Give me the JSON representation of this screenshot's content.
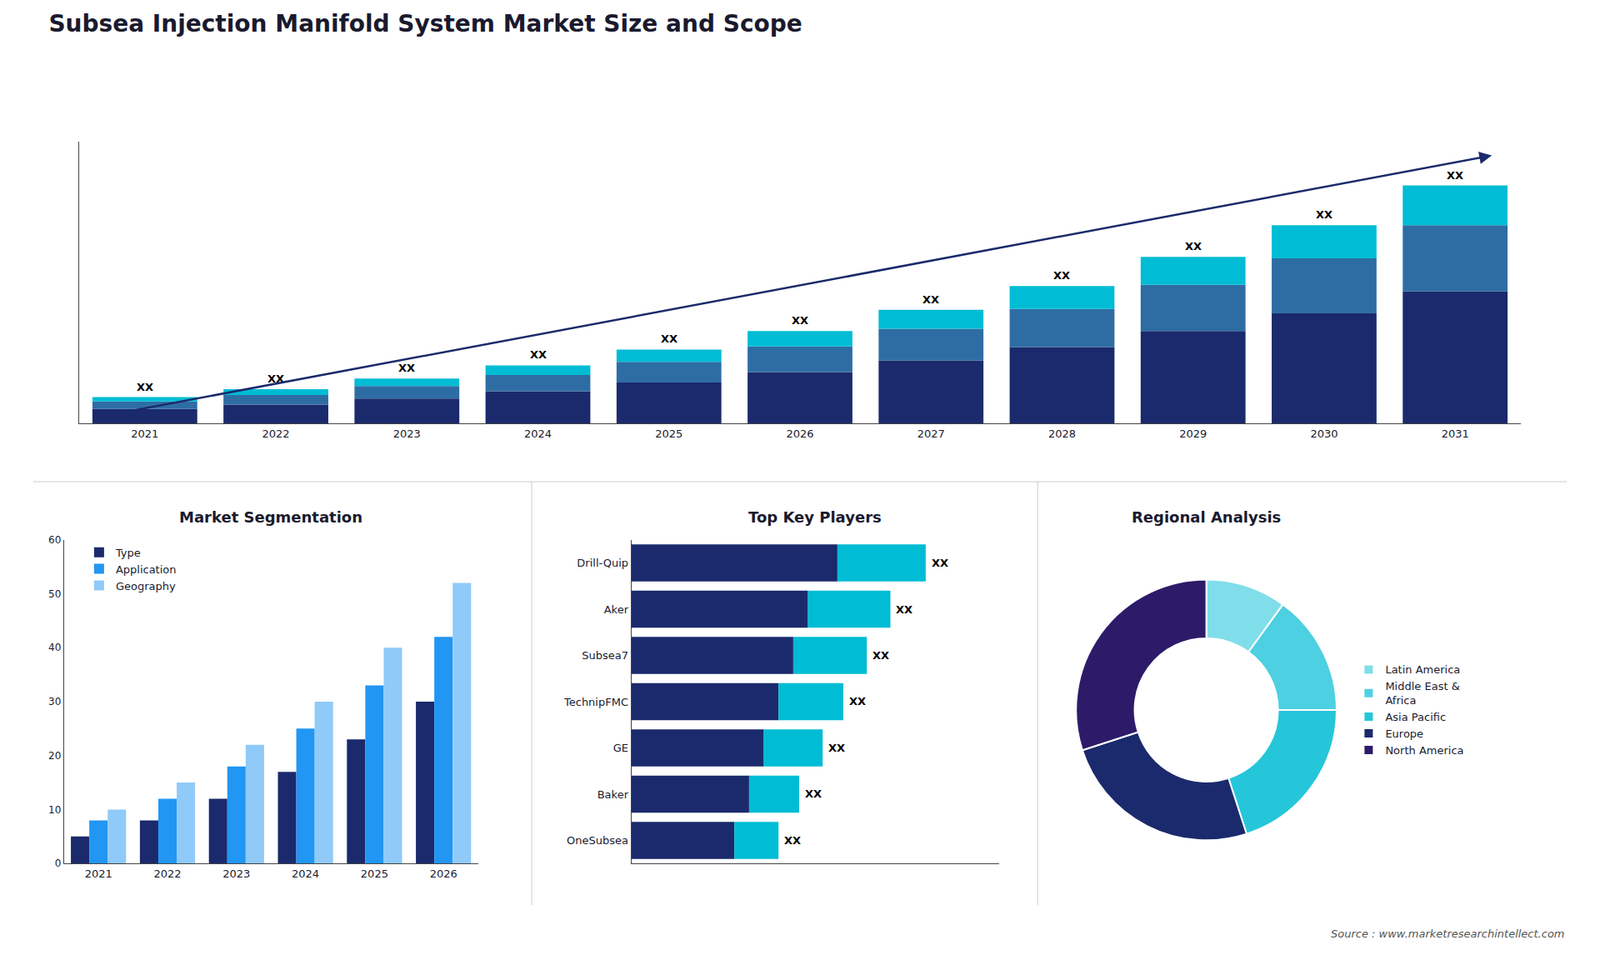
{
  "chart_data": [
    {
      "type": "bar",
      "title": "Subsea Injection Manifold System Market Size and Scope",
      "stacked": true,
      "categories": [
        "2021",
        "2022",
        "2023",
        "2024",
        "2025",
        "2026",
        "2027",
        "2028",
        "2029",
        "2030",
        "2031"
      ],
      "series": [
        {
          "color": "#1a2a6c",
          "values": [
            1,
            1.3,
            1.7,
            2.2,
            2.8,
            3.5,
            4.3,
            5.2,
            6.3,
            7.5,
            9.0
          ]
        },
        {
          "color": "#2e6da4",
          "values": [
            0.5,
            0.65,
            0.85,
            1.1,
            1.4,
            1.75,
            2.15,
            2.6,
            3.15,
            3.75,
            4.5
          ]
        },
        {
          "color": "#00bcd4",
          "values": [
            0.3,
            0.39,
            0.51,
            0.66,
            0.84,
            1.05,
            1.29,
            1.56,
            1.89,
            2.25,
            2.7
          ]
        }
      ],
      "ylim": [
        0,
        19.2
      ],
      "tick_labels": "x",
      "grid": false,
      "annotations": [
        {
          "category": "2021",
          "text": "XX"
        },
        {
          "category": "2022",
          "text": "XX"
        },
        {
          "category": "2023",
          "text": "XX"
        },
        {
          "category": "2024",
          "text": "XX"
        },
        {
          "category": "2025",
          "text": "XX"
        },
        {
          "category": "2026",
          "text": "XX"
        },
        {
          "category": "2027",
          "text": "XX"
        },
        {
          "category": "2028",
          "text": "XX"
        },
        {
          "category": "2029",
          "text": "XX"
        },
        {
          "category": "2030",
          "text": "XX"
        },
        {
          "category": "2031",
          "text": "XX"
        },
        {
          "text": "Source : www.marketresearchintellect.com"
        }
      ]
    },
    {
      "type": "bar",
      "title": "Market Segmentation",
      "categories": [
        "2021",
        "2022",
        "2023",
        "2024",
        "2025",
        "2026"
      ],
      "series": [
        {
          "name": "Type",
          "color": "#1a2a6c",
          "values": [
            5,
            8,
            12,
            17,
            23,
            30
          ]
        },
        {
          "name": "Application",
          "color": "#2196f3",
          "values": [
            8,
            12,
            18,
            25,
            33,
            42
          ]
        },
        {
          "name": "Geography",
          "color": "#90caf9",
          "values": [
            10,
            15,
            22,
            30,
            40,
            52
          ]
        }
      ],
      "ylim": [
        0,
        60
      ],
      "yticks": [
        0,
        10,
        20,
        30,
        40,
        50,
        60
      ],
      "legend": "upper left",
      "grid": false
    },
    {
      "type": "bar",
      "title": "Top Key Players",
      "orientation": "horizontal",
      "stacked": true,
      "categories": [
        "Drill-Quip",
        "Aker",
        "Subsea7",
        "TechnipFMC",
        "GE",
        "Baker",
        "OneSubsea"
      ],
      "series": [
        {
          "color": "#1a2a6c",
          "values": [
            7,
            6,
            5.5,
            5,
            4.5,
            4,
            3.5
          ]
        },
        {
          "color": "#00bcd4",
          "values": [
            3,
            2.8,
            2.5,
            2.2,
            2.0,
            1.7,
            1.5
          ]
        }
      ],
      "xlim": [
        0,
        12.5
      ],
      "tick_labels": "y",
      "grid": false,
      "annotations": [
        {
          "category": "Drill-Quip",
          "text": "XX"
        },
        {
          "category": "Aker",
          "text": "XX"
        },
        {
          "category": "Subsea7",
          "text": "XX"
        },
        {
          "category": "TechnipFMC",
          "text": "XX"
        },
        {
          "category": "GE",
          "text": "XX"
        },
        {
          "category": "Baker",
          "text": "XX"
        },
        {
          "category": "OneSubsea",
          "text": "XX"
        }
      ]
    },
    {
      "type": "pie",
      "title": "Regional Analysis",
      "categories": [
        "Latin America",
        "Middle East &\nAfrica",
        "Asia Pacific",
        "Europe",
        "North America"
      ],
      "values": [
        10,
        15,
        20,
        25,
        30
      ],
      "colors": [
        "#80deea",
        "#4dd0e1",
        "#26c6da",
        "#1a2a6c",
        "#2d1b69"
      ],
      "legend": "right"
    }
  ]
}
